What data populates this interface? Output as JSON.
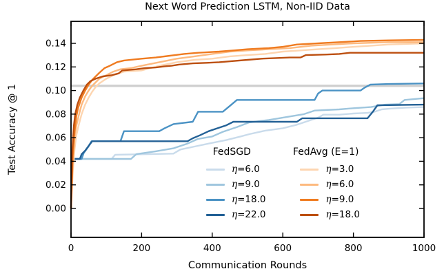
{
  "chart_data": {
    "type": "line",
    "title": "Next Word Prediction LSTM, Non-IID Data",
    "xlabel": "Communication Rounds",
    "ylabel": "Test Accuracy @ 1",
    "xlim": [
      0,
      1000
    ],
    "ylim": [
      -0.025,
      0.159
    ],
    "x_ticks": [
      0,
      200,
      400,
      600,
      800,
      1000
    ],
    "y_ticks": [
      0.0,
      0.02,
      0.04,
      0.06,
      0.08,
      0.1,
      0.12,
      0.14
    ],
    "grid": false,
    "tick_style": "inward on all four spines",
    "baseline": {
      "y": 0.104,
      "color": "#d0d0d0",
      "width": 3.5
    },
    "legend": {
      "position": "inside lower-center-right, two column groups",
      "groups": [
        {
          "title": "FedSGD",
          "entries": [
            {
              "label": "η=6.0",
              "color": "#c9dbeb"
            },
            {
              "label": "η=9.0",
              "color": "#9fc6de"
            },
            {
              "label": "η=18.0",
              "color": "#4a92c4"
            },
            {
              "label": "η=22.0",
              "color": "#236196"
            }
          ]
        },
        {
          "title": "FedAvg (E=1)",
          "entries": [
            {
              "label": "η=3.0",
              "color": "#fdd5b0"
            },
            {
              "label": "η=6.0",
              "color": "#fdb97e"
            },
            {
              "label": "η=9.0",
              "color": "#ef7b20"
            },
            {
              "label": "η=18.0",
              "color": "#bc4f10"
            }
          ]
        }
      ]
    },
    "series": [
      {
        "name": "FedSGD η=6.0",
        "color": "#c9dbeb",
        "points": [
          [
            0,
            0.042
          ],
          [
            115,
            0.042
          ],
          [
            125,
            0.0455
          ],
          [
            290,
            0.0465
          ],
          [
            310,
            0.05
          ],
          [
            350,
            0.0525
          ],
          [
            390,
            0.055
          ],
          [
            440,
            0.058
          ],
          [
            480,
            0.061
          ],
          [
            505,
            0.063
          ],
          [
            550,
            0.066
          ],
          [
            600,
            0.068
          ],
          [
            640,
            0.071
          ],
          [
            670,
            0.074
          ],
          [
            700,
            0.077
          ],
          [
            715,
            0.0795
          ],
          [
            760,
            0.0795
          ],
          [
            800,
            0.0805
          ],
          [
            840,
            0.081
          ],
          [
            860,
            0.082
          ],
          [
            880,
            0.084
          ],
          [
            900,
            0.0845
          ],
          [
            950,
            0.0855
          ],
          [
            1000,
            0.086
          ]
        ]
      },
      {
        "name": "FedSGD η=9.0",
        "color": "#9fc6de",
        "points": [
          [
            0,
            0.042
          ],
          [
            170,
            0.042
          ],
          [
            185,
            0.046
          ],
          [
            240,
            0.0485
          ],
          [
            290,
            0.051
          ],
          [
            330,
            0.055
          ],
          [
            360,
            0.059
          ],
          [
            400,
            0.061
          ],
          [
            430,
            0.065
          ],
          [
            470,
            0.069
          ],
          [
            505,
            0.073
          ],
          [
            560,
            0.075
          ],
          [
            620,
            0.078
          ],
          [
            660,
            0.08
          ],
          [
            690,
            0.083
          ],
          [
            760,
            0.084
          ],
          [
            800,
            0.085
          ],
          [
            850,
            0.086
          ],
          [
            890,
            0.088
          ],
          [
            930,
            0.0885
          ],
          [
            945,
            0.092
          ],
          [
            1000,
            0.0935
          ]
        ]
      },
      {
        "name": "FedSGD η=18.0",
        "color": "#4a92c4",
        "points": [
          [
            0,
            0.042
          ],
          [
            30,
            0.042
          ],
          [
            36,
            0.047
          ],
          [
            48,
            0.052
          ],
          [
            58,
            0.057
          ],
          [
            140,
            0.057
          ],
          [
            150,
            0.0655
          ],
          [
            250,
            0.0655
          ],
          [
            265,
            0.068
          ],
          [
            290,
            0.0715
          ],
          [
            345,
            0.0735
          ],
          [
            360,
            0.082
          ],
          [
            430,
            0.082
          ],
          [
            450,
            0.087
          ],
          [
            470,
            0.092
          ],
          [
            690,
            0.092
          ],
          [
            700,
            0.0975
          ],
          [
            712,
            0.1
          ],
          [
            820,
            0.1
          ],
          [
            832,
            0.1025
          ],
          [
            848,
            0.105
          ],
          [
            900,
            0.1055
          ],
          [
            1000,
            0.106
          ]
        ]
      },
      {
        "name": "FedSGD η=22.0",
        "color": "#236196",
        "points": [
          [
            0,
            0.042
          ],
          [
            25,
            0.042
          ],
          [
            30,
            0.046
          ],
          [
            40,
            0.049
          ],
          [
            50,
            0.053
          ],
          [
            60,
            0.057
          ],
          [
            330,
            0.057
          ],
          [
            345,
            0.0595
          ],
          [
            365,
            0.062
          ],
          [
            390,
            0.0655
          ],
          [
            415,
            0.068
          ],
          [
            440,
            0.0705
          ],
          [
            460,
            0.0735
          ],
          [
            640,
            0.0735
          ],
          [
            655,
            0.0765
          ],
          [
            840,
            0.0765
          ],
          [
            855,
            0.082
          ],
          [
            868,
            0.0875
          ],
          [
            1000,
            0.088
          ]
        ]
      },
      {
        "name": "FedAvg (E=1) η=3.0",
        "color": "#fdd5b0",
        "points": [
          [
            0,
            0.0
          ],
          [
            5,
            0.03
          ],
          [
            10,
            0.05
          ],
          [
            15,
            0.062
          ],
          [
            22,
            0.071
          ],
          [
            30,
            0.08
          ],
          [
            40,
            0.088
          ],
          [
            50,
            0.094
          ],
          [
            60,
            0.099
          ],
          [
            70,
            0.103
          ],
          [
            80,
            0.106
          ],
          [
            100,
            0.11
          ],
          [
            120,
            0.113
          ],
          [
            150,
            0.116
          ],
          [
            200,
            0.117
          ],
          [
            250,
            0.121
          ],
          [
            300,
            0.124
          ],
          [
            350,
            0.126
          ],
          [
            400,
            0.127
          ],
          [
            450,
            0.129
          ],
          [
            500,
            0.13
          ],
          [
            550,
            0.131
          ],
          [
            600,
            0.133
          ],
          [
            650,
            0.134
          ],
          [
            700,
            0.135
          ],
          [
            750,
            0.136
          ],
          [
            800,
            0.137
          ],
          [
            850,
            0.138
          ],
          [
            900,
            0.139
          ],
          [
            1000,
            0.14
          ]
        ]
      },
      {
        "name": "FedAvg (E=1) η=6.0",
        "color": "#fdb97e",
        "points": [
          [
            0,
            0.0
          ],
          [
            5,
            0.04
          ],
          [
            10,
            0.06
          ],
          [
            15,
            0.07
          ],
          [
            22,
            0.079
          ],
          [
            30,
            0.088
          ],
          [
            40,
            0.095
          ],
          [
            50,
            0.1
          ],
          [
            60,
            0.104
          ],
          [
            70,
            0.107
          ],
          [
            80,
            0.11
          ],
          [
            100,
            0.113
          ],
          [
            120,
            0.116
          ],
          [
            140,
            0.118
          ],
          [
            170,
            0.119
          ],
          [
            200,
            0.121
          ],
          [
            250,
            0.124
          ],
          [
            300,
            0.127
          ],
          [
            350,
            0.129
          ],
          [
            400,
            0.131
          ],
          [
            450,
            0.133
          ],
          [
            500,
            0.134
          ],
          [
            560,
            0.135
          ],
          [
            620,
            0.136
          ],
          [
            680,
            0.138
          ],
          [
            740,
            0.139
          ],
          [
            800,
            0.14
          ],
          [
            900,
            0.141
          ],
          [
            1000,
            0.141
          ]
        ]
      },
      {
        "name": "FedAvg (E=1) η=9.0",
        "color": "#ef7b20",
        "points": [
          [
            0,
            0.0
          ],
          [
            5,
            0.045
          ],
          [
            10,
            0.065
          ],
          [
            15,
            0.078
          ],
          [
            20,
            0.085
          ],
          [
            30,
            0.094
          ],
          [
            40,
            0.1
          ],
          [
            50,
            0.105
          ],
          [
            60,
            0.109
          ],
          [
            70,
            0.112
          ],
          [
            80,
            0.115
          ],
          [
            95,
            0.119
          ],
          [
            110,
            0.121
          ],
          [
            130,
            0.124
          ],
          [
            150,
            0.1255
          ],
          [
            200,
            0.127
          ],
          [
            240,
            0.128
          ],
          [
            280,
            0.1295
          ],
          [
            320,
            0.131
          ],
          [
            360,
            0.132
          ],
          [
            420,
            0.133
          ],
          [
            460,
            0.134
          ],
          [
            500,
            0.135
          ],
          [
            560,
            0.136
          ],
          [
            600,
            0.137
          ],
          [
            640,
            0.139
          ],
          [
            700,
            0.14
          ],
          [
            760,
            0.141
          ],
          [
            820,
            0.142
          ],
          [
            900,
            0.1425
          ],
          [
            1000,
            0.143
          ]
        ]
      },
      {
        "name": "FedAvg (E=1) η=18.0",
        "color": "#bc4f10",
        "points": [
          [
            0,
            0.0
          ],
          [
            4,
            0.05
          ],
          [
            8,
            0.07
          ],
          [
            12,
            0.08
          ],
          [
            18,
            0.088
          ],
          [
            25,
            0.094
          ],
          [
            35,
            0.1
          ],
          [
            45,
            0.105
          ],
          [
            55,
            0.108
          ],
          [
            70,
            0.11
          ],
          [
            90,
            0.112
          ],
          [
            115,
            0.113
          ],
          [
            135,
            0.1145
          ],
          [
            145,
            0.117
          ],
          [
            185,
            0.118
          ],
          [
            210,
            0.119
          ],
          [
            240,
            0.1195
          ],
          [
            265,
            0.1205
          ],
          [
            285,
            0.121
          ],
          [
            305,
            0.122
          ],
          [
            345,
            0.123
          ],
          [
            385,
            0.1235
          ],
          [
            420,
            0.124
          ],
          [
            460,
            0.125
          ],
          [
            500,
            0.126
          ],
          [
            540,
            0.127
          ],
          [
            580,
            0.1275
          ],
          [
            620,
            0.128
          ],
          [
            650,
            0.128
          ],
          [
            665,
            0.13
          ],
          [
            720,
            0.1305
          ],
          [
            760,
            0.131
          ],
          [
            790,
            0.132
          ],
          [
            1000,
            0.132
          ]
        ]
      }
    ]
  }
}
